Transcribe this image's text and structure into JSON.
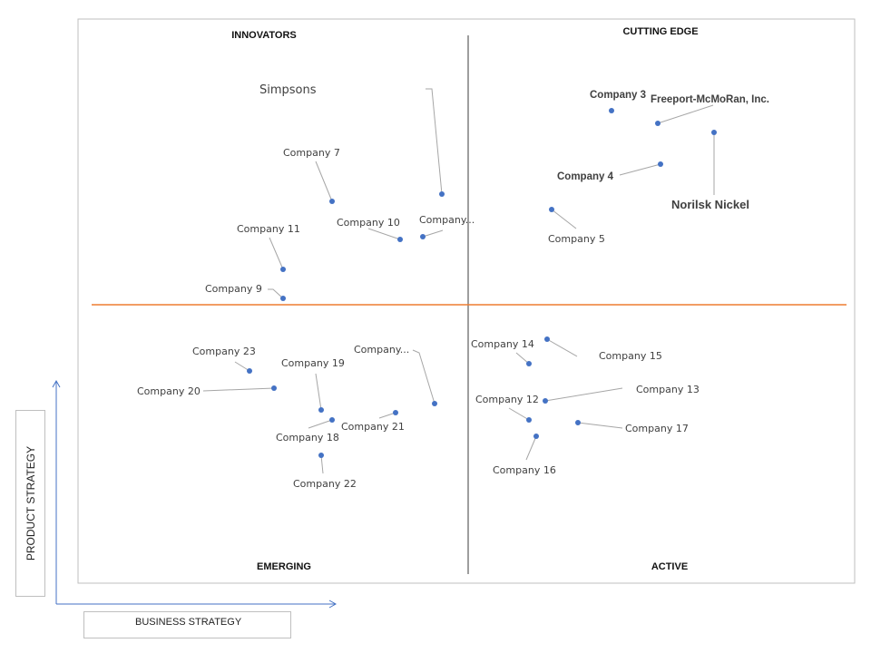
{
  "chart_data": {
    "type": "scatter",
    "title": "",
    "xlabel": "BUSINESS STRATEGY",
    "ylabel": "PRODUCT STRATEGY",
    "xlim": [
      0,
      10
    ],
    "ylim": [
      0,
      10
    ],
    "grid": false,
    "quadrants": {
      "top_left": "INNOVATORS",
      "top_right": "CUTTING EDGE",
      "bottom_left": "EMERGING",
      "bottom_right": "ACTIVE"
    },
    "points": [
      {
        "label": "Simpsons",
        "x": 4.6,
        "y": 8.0
      },
      {
        "label": "Company 7",
        "x": 3.3,
        "y": 7.8
      },
      {
        "label": "Company 10",
        "x": 4.1,
        "y": 7.1
      },
      {
        "label": "Company...",
        "x": 4.4,
        "y": 7.1
      },
      {
        "label": "Company 11",
        "x": 2.7,
        "y": 6.3
      },
      {
        "label": "Company 9",
        "x": 2.7,
        "y": 5.8
      },
      {
        "label": "Company 3",
        "x": 7.0,
        "y": 9.7
      },
      {
        "label": "Freeport-McMoRan, Inc.",
        "x": 7.6,
        "y": 9.4
      },
      {
        "label": "Norilsk Nickel",
        "x": 8.3,
        "y": 9.3
      },
      {
        "label": "Company 4",
        "x": 7.6,
        "y": 8.6
      },
      {
        "label": "Company 5",
        "x": 6.2,
        "y": 7.2
      },
      {
        "label": "Company 23",
        "x": 2.3,
        "y": 4.2
      },
      {
        "label": "Company 20",
        "x": 2.6,
        "y": 3.8
      },
      {
        "label": "Company 19",
        "x": 3.1,
        "y": 3.3
      },
      {
        "label": "Company...",
        "x": 4.5,
        "y": 3.4
      },
      {
        "label": "Company 21",
        "x": 4.0,
        "y": 3.2
      },
      {
        "label": "Company 18",
        "x": 3.3,
        "y": 3.1
      },
      {
        "label": "Company 22",
        "x": 3.1,
        "y": 2.4
      },
      {
        "label": "Company 14",
        "x": 6.0,
        "y": 4.4
      },
      {
        "label": "Company 15",
        "x": 6.2,
        "y": 4.8
      },
      {
        "label": "Company 12",
        "x": 6.2,
        "y": 3.5
      },
      {
        "label": "Company 13",
        "x": 6.2,
        "y": 3.6
      },
      {
        "label": "Company 17",
        "x": 6.6,
        "y": 3.0
      },
      {
        "label": "Company 16",
        "x": 6.1,
        "y": 2.7
      }
    ],
    "colors": {
      "point": "#4472c4",
      "divider": "#ed7d31",
      "axis": "#4472c4",
      "quadrant_line": "#7f7f7f"
    }
  }
}
